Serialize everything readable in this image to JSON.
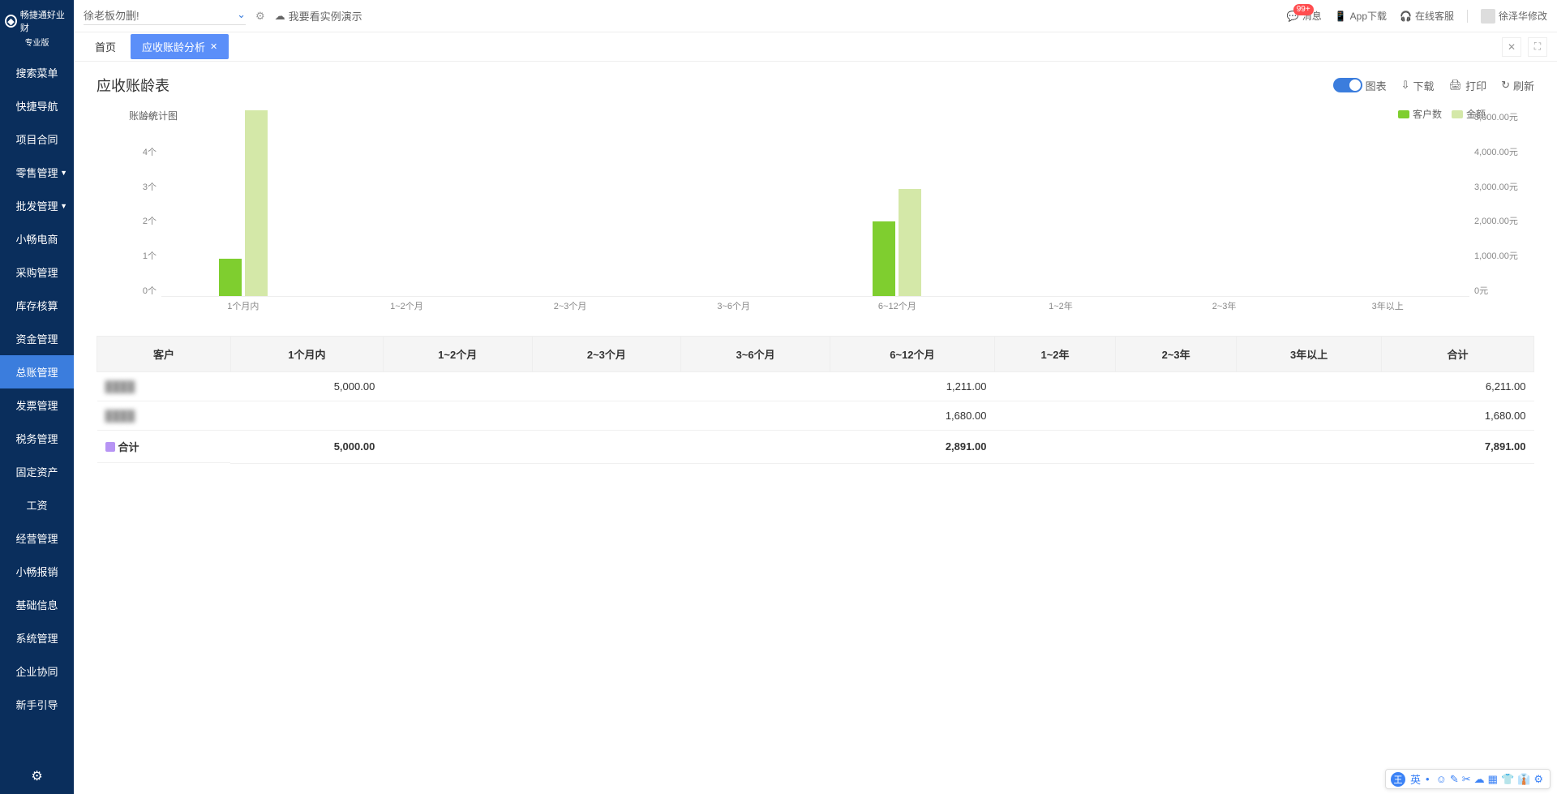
{
  "brand": {
    "name": "畅捷通好业财",
    "edition": "专业版"
  },
  "sidebar": {
    "items": [
      {
        "label": "搜索菜单",
        "arrow": false
      },
      {
        "label": "快捷导航",
        "arrow": false
      },
      {
        "label": "项目合同",
        "arrow": false
      },
      {
        "label": "零售管理",
        "arrow": true
      },
      {
        "label": "批发管理",
        "arrow": true
      },
      {
        "label": "小畅电商",
        "arrow": false
      },
      {
        "label": "采购管理",
        "arrow": false
      },
      {
        "label": "库存核算",
        "arrow": false
      },
      {
        "label": "资金管理",
        "arrow": false
      },
      {
        "label": "总账管理",
        "arrow": false,
        "active": true
      },
      {
        "label": "发票管理",
        "arrow": false
      },
      {
        "label": "税务管理",
        "arrow": false
      },
      {
        "label": "固定资产",
        "arrow": false
      },
      {
        "label": "工资",
        "arrow": false
      },
      {
        "label": "经营管理",
        "arrow": false
      },
      {
        "label": "小畅报销",
        "arrow": false
      },
      {
        "label": "基础信息",
        "arrow": false
      },
      {
        "label": "系统管理",
        "arrow": false
      },
      {
        "label": "企业协同",
        "arrow": false
      },
      {
        "label": "新手引导",
        "arrow": false
      }
    ]
  },
  "topbar": {
    "account": "徐老板勿删!",
    "demo": "我要看实例演示",
    "badge": "99+",
    "msg": "消息",
    "download": "App下载",
    "service": "在线客服",
    "user": "徐泽华修改"
  },
  "tabs": {
    "home": "首页",
    "active": "应收账龄分析"
  },
  "page": {
    "title": "应收账龄表",
    "chart_toggle": "图表",
    "download": "下载",
    "print": "打印",
    "refresh": "刷新"
  },
  "chart": {
    "subtitle": "账龄统计图",
    "legend": {
      "customers": "客户数",
      "amount": "金额"
    },
    "colors": {
      "customers": "#7fce2f",
      "amount": "#d4e8a8",
      "grid": "#eeeeee",
      "text": "#888888"
    },
    "categories": [
      "1个月内",
      "1~2个月",
      "2~3个月",
      "3~6个月",
      "6~12个月",
      "1~2年",
      "2~3年",
      "3年以上"
    ],
    "left_axis": {
      "max": 5,
      "ticks": [
        "5个",
        "4个",
        "3个",
        "2个",
        "1个",
        "0个"
      ]
    },
    "right_axis": {
      "max": 5000,
      "ticks": [
        "5,000.00元",
        "4,000.00元",
        "3,000.00元",
        "2,000.00元",
        "1,000.00元",
        "0元"
      ]
    },
    "series": {
      "customers": [
        1,
        0,
        0,
        0,
        2,
        0,
        0,
        0
      ],
      "amount": [
        5000,
        0,
        0,
        0,
        2891,
        0,
        0,
        0
      ]
    }
  },
  "table": {
    "columns": [
      "客户",
      "1个月内",
      "1~2个月",
      "2~3个月",
      "3~6个月",
      "6~12个月",
      "1~2年",
      "2~3年",
      "3年以上",
      "合计"
    ],
    "rows": [
      {
        "customer": "████",
        "blurred": true,
        "cells": [
          "5,000.00",
          "",
          "",
          "",
          "1,211.00",
          "",
          "",
          "",
          "6,211.00"
        ]
      },
      {
        "customer": "████",
        "blurred": true,
        "cells": [
          "",
          "",
          "",
          "",
          "1,680.00",
          "",
          "",
          "",
          "1,680.00"
        ]
      }
    ],
    "total": {
      "label": "合计",
      "cells": [
        "5,000.00",
        "",
        "",
        "",
        "2,891.00",
        "",
        "",
        "",
        "7,891.00"
      ]
    }
  },
  "ime": {
    "badge": "王",
    "lang": "英",
    "icons": [
      "☺",
      "✎",
      "✂",
      "☁",
      "▦",
      "👕",
      "👔",
      "⚙"
    ],
    "dot": "•"
  }
}
